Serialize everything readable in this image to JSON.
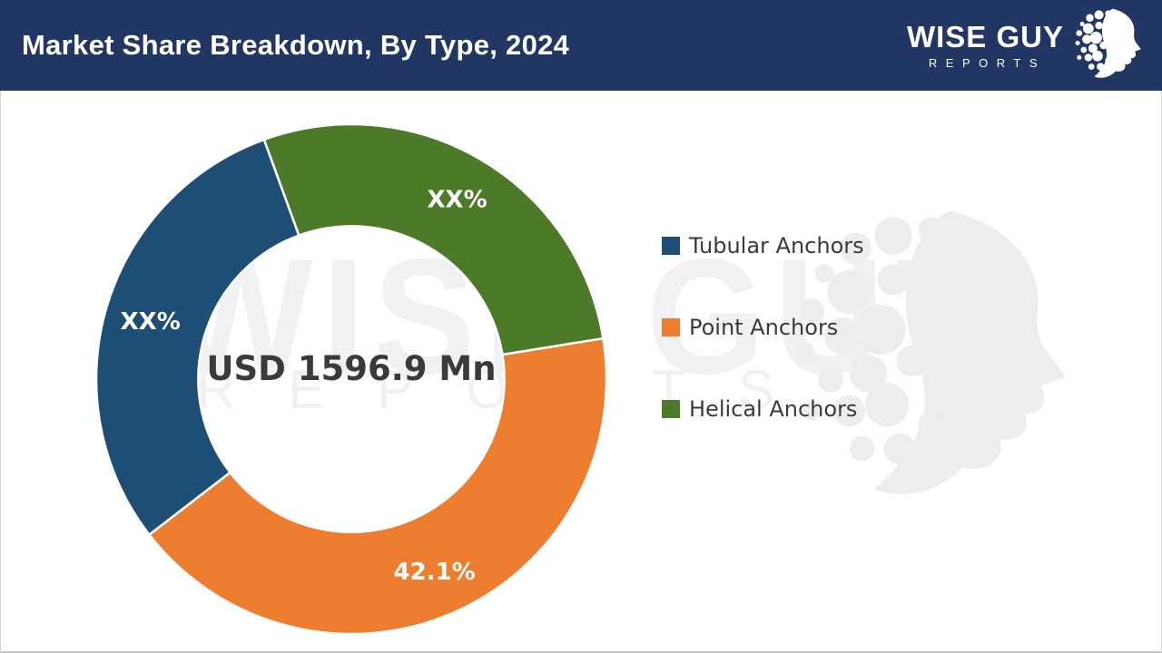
{
  "header": {
    "title": "Market Share Breakdown, By Type, 2024",
    "logo": {
      "line1": "WISE GUY",
      "line2": "REPORTS"
    }
  },
  "watermark": {
    "line1": "WISE GUY",
    "line2": "REPORTS"
  },
  "center": {
    "value_label": "USD 1596.9 Mn"
  },
  "chart_data": {
    "type": "pie",
    "subtype": "donut",
    "title": "Market Share Breakdown, By Type, 2024",
    "center_label": "USD 1596.9 Mn",
    "units": "percent share of USD 1596.9 Mn market",
    "start_angle_deg": 110,
    "direction": "counterclockwise",
    "inner_radius_ratio": 0.6,
    "legend_position": "right",
    "segments": [
      {
        "name": "Tubular Anchors",
        "value_pct": 29.9,
        "display_label": "XX%",
        "color": "#1f4e74"
      },
      {
        "name": "Point Anchors",
        "value_pct": 42.1,
        "display_label": "42.1%",
        "color": "#ed7d2f"
      },
      {
        "name": "Helical Anchors",
        "value_pct": 28.0,
        "display_label": "XX%",
        "color": "#4c7a29"
      }
    ]
  }
}
